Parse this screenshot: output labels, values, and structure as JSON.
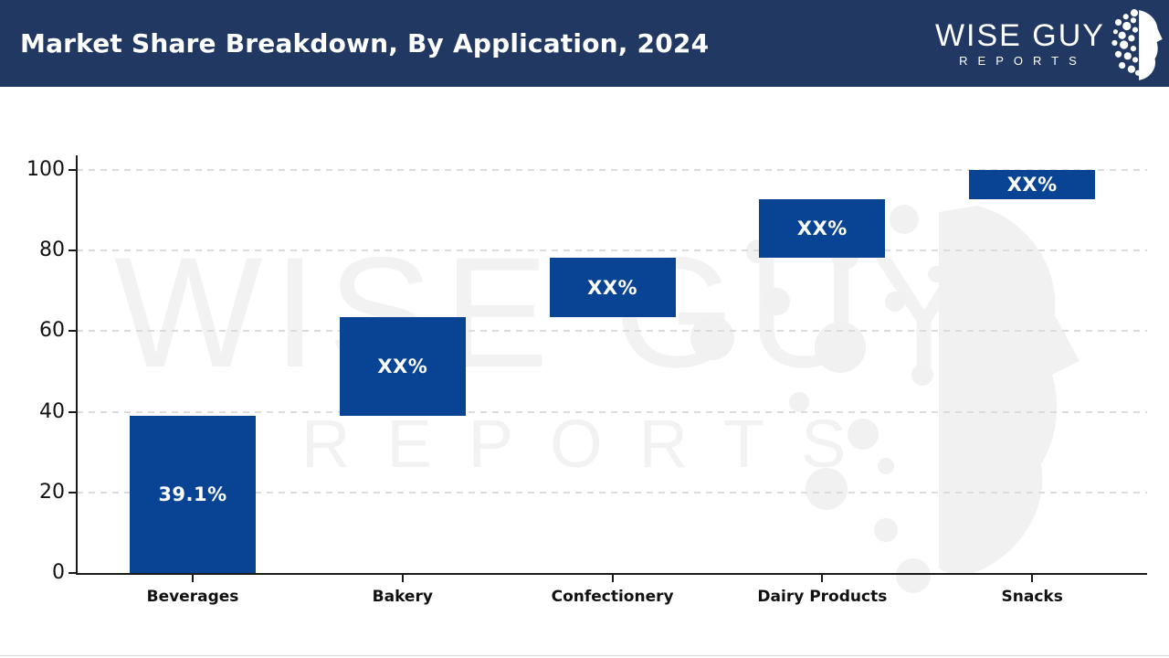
{
  "header": {
    "title": "Market Share Breakdown, By Application, 2024",
    "logo": {
      "line1": "WISE GUY",
      "line2": "REPORTS"
    }
  },
  "watermark": {
    "line1": "WISE GUY",
    "line2": "REPORTS"
  },
  "colors": {
    "header_bg": "#213862",
    "bar": "#084394",
    "bar_label": "#ffffff",
    "axis": "#1a1a1a",
    "grid": "#dcdcdc",
    "watermark": "#f2f2f2",
    "title_text": "#ffffff"
  },
  "chart_data": {
    "type": "bar",
    "subtype": "waterfall",
    "title": "Market Share Breakdown, By Application, 2024",
    "xlabel": "",
    "ylabel": "",
    "ylim": [
      0,
      103.6
    ],
    "yticks": [
      0,
      20,
      40,
      60,
      80,
      100
    ],
    "grid": "horizontal-dashed",
    "legend": false,
    "categories": [
      "Beverages",
      "Bakery",
      "Confectionery",
      "Dairy Products",
      "Snacks"
    ],
    "segments": [
      {
        "category": "Beverages",
        "start": 0,
        "end": 39.1,
        "value": 39.1,
        "label": "39.1%"
      },
      {
        "category": "Bakery",
        "start": 39.1,
        "end": 63.5,
        "value": 24.4,
        "label": "XX%"
      },
      {
        "category": "Confectionery",
        "start": 63.5,
        "end": 78.2,
        "value": 14.7,
        "label": "XX%"
      },
      {
        "category": "Dairy Products",
        "start": 78.2,
        "end": 92.7,
        "value": 14.5,
        "label": "XX%"
      },
      {
        "category": "Snacks",
        "start": 92.7,
        "end": 100,
        "value": 7.3,
        "label": "XX%"
      }
    ]
  }
}
